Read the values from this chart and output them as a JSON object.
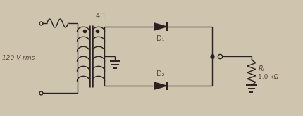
{
  "bg_color": "#cfc5ae",
  "line_color": "#2a2220",
  "label_color": "#5a4a3a",
  "label_120v": "120 V rms",
  "label_ratio": "4:1",
  "label_d1": "D₁",
  "label_d2": "D₂",
  "label_rl": "Rₗ",
  "label_rl_val": "1.0 kΩ",
  "fig_width": 4.3,
  "fig_height": 1.65,
  "dpi": 100
}
